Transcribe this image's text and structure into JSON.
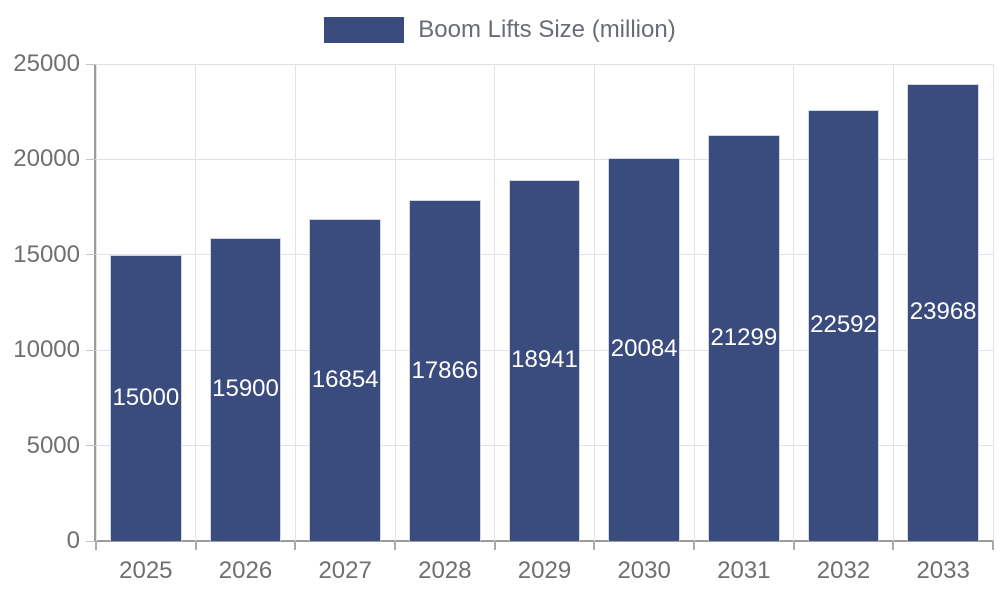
{
  "chart_data": {
    "type": "bar",
    "title": "",
    "categories": [
      "2025",
      "2026",
      "2027",
      "2028",
      "2029",
      "2030",
      "2031",
      "2032",
      "2033"
    ],
    "series": [
      {
        "name": "Boom Lifts Size (million)",
        "values": [
          15000,
          15900,
          16854,
          17866,
          18941,
          20084,
          21299,
          22592,
          23968
        ]
      }
    ],
    "xlabel": "",
    "ylabel": "",
    "ylim": [
      0,
      25000
    ],
    "yticks": [
      0,
      5000,
      10000,
      15000,
      20000,
      25000
    ],
    "grid": true,
    "legend_position": "top-center",
    "bar_width_ratio": 0.72,
    "colors": {
      "bar": "#3a4b7e",
      "bar_value_label": "#ffffff",
      "axis_line": "#9b9b9b",
      "gridline": "#e0e0e6",
      "tick_label": "#6f6f6f",
      "legend_text": "#686d75",
      "background": "#ffffff"
    }
  }
}
